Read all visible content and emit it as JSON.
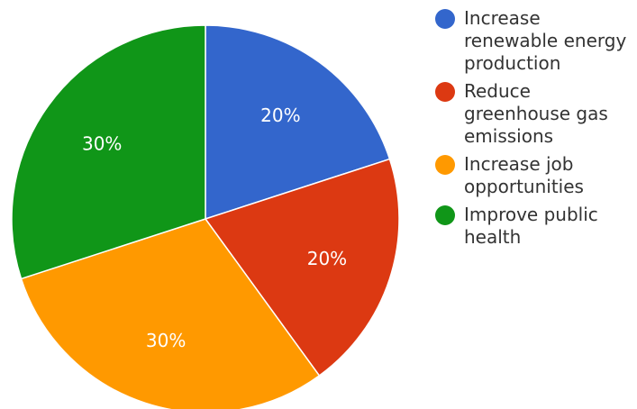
{
  "chart_data": {
    "type": "pie",
    "slices": [
      {
        "label": "Increase renewable energy production",
        "value": 20,
        "display": "20%",
        "color": "#3366cc"
      },
      {
        "label": "Reduce greenhouse gas emissions",
        "value": 20,
        "display": "20%",
        "color": "#dc3912"
      },
      {
        "label": "Increase job opportunities",
        "value": 30,
        "display": "30%",
        "color": "#ff9900"
      },
      {
        "label": "Improve public health",
        "value": 30,
        "display": "30%",
        "color": "#109618"
      }
    ],
    "legend_position": "right"
  }
}
